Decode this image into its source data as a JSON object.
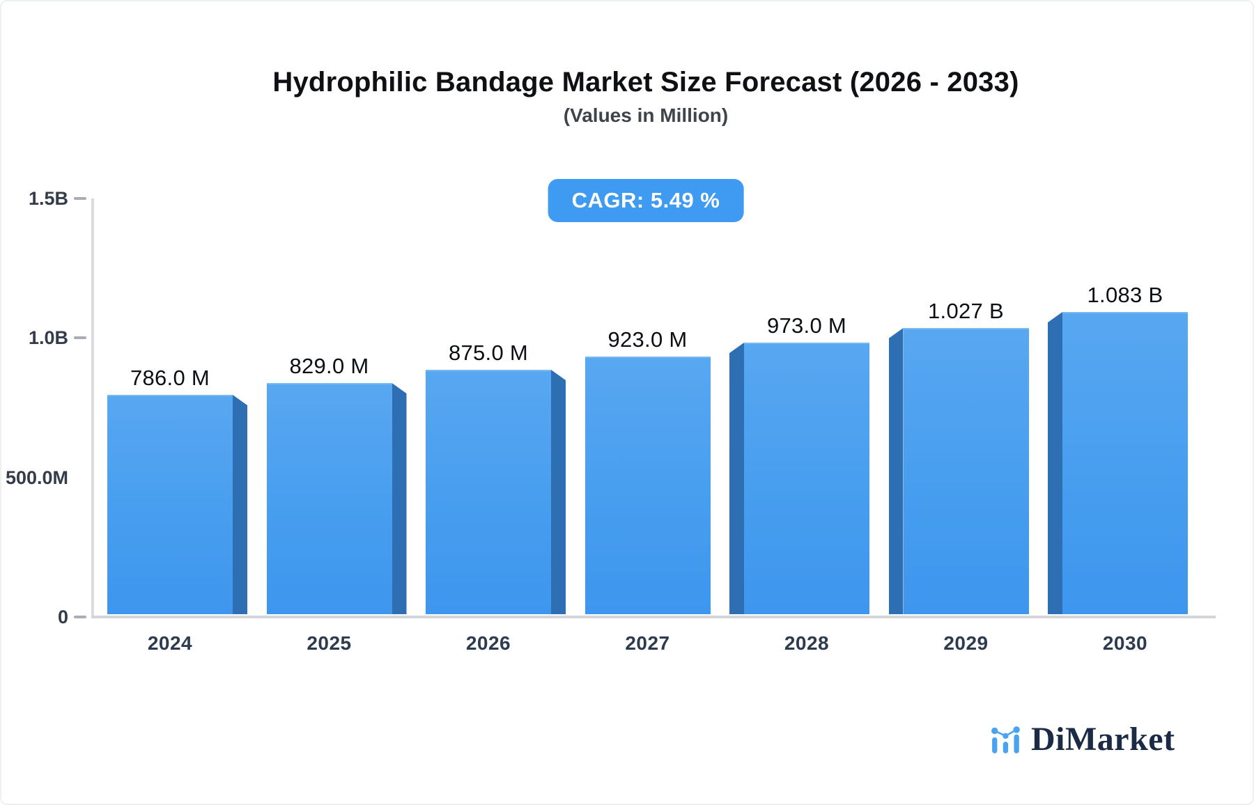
{
  "header": {
    "title": "Hydrophilic Bandage Market Size Forecast (2026 - 2033)",
    "subtitle": "(Values in Million)",
    "cagr_badge": "CAGR: 5.49 %"
  },
  "chart_data": {
    "type": "bar",
    "title": "Hydrophilic Bandage Market Size Forecast (2026 - 2033)",
    "subtitle": "(Values in Million)",
    "cagr_percent": 5.49,
    "categories": [
      "2024",
      "2025",
      "2026",
      "2027",
      "2028",
      "2029",
      "2030"
    ],
    "values_millions": [
      786,
      829,
      875,
      923,
      973,
      1027,
      1083
    ],
    "value_labels": [
      "786.0 M",
      "829.0 M",
      "875.0 M",
      "923.0 M",
      "973.0 M",
      "1.027 B",
      "1.083 B"
    ],
    "ylim_millions": [
      0,
      1500
    ],
    "y_axis": [
      {
        "label": "1.5B",
        "value_millions": 1500,
        "tick": true
      },
      {
        "label": "1.0B",
        "value_millions": 1000,
        "tick": true
      },
      {
        "label": "500.0M",
        "value_millions": 500,
        "tick": false
      },
      {
        "label": "0",
        "value_millions": 0,
        "tick": true
      }
    ],
    "grid": false,
    "legend": "none",
    "colors": {
      "bar_face_top": "#58a7f1",
      "bar_face_bottom": "#3e96ee",
      "bar_side": "#2d6fb2",
      "badge_background": "#3e9bf1",
      "axis_line": "#d6d8dc",
      "tick": "#a9adb4"
    }
  },
  "footer": {
    "brand": "DiMarket",
    "brand_color": "#1b2a45",
    "logo_icon": "mini-bar-chart-icon",
    "logo_icon_color": "#4aa2f3"
  }
}
